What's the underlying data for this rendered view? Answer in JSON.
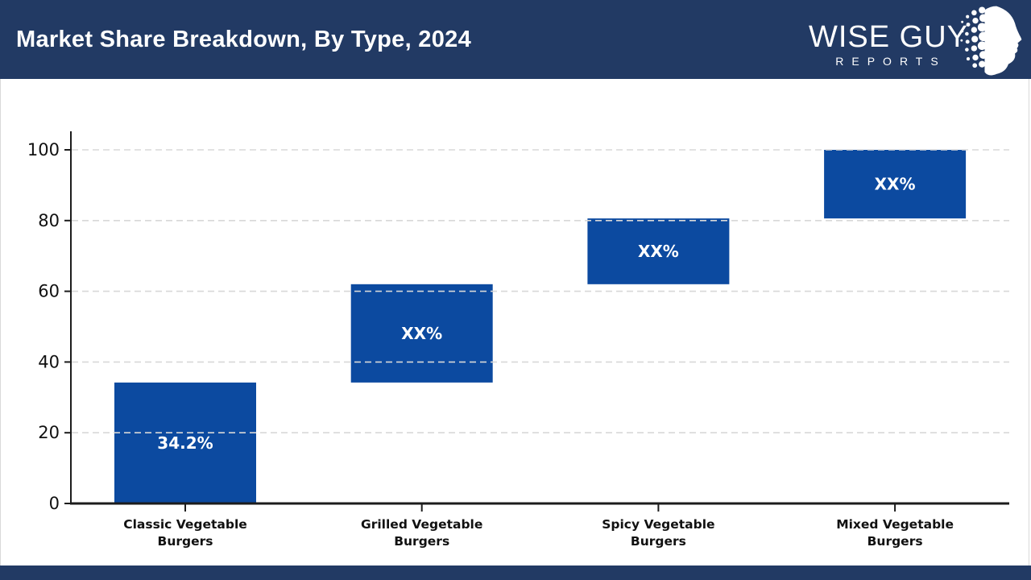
{
  "header": {
    "title": "Market Share Breakdown, By Type, 2024",
    "logo": {
      "name": "WISE GUY",
      "sub": "REPORTS"
    }
  },
  "watermark": {
    "name": "WISE GUY",
    "sub": "R E P O R T S"
  },
  "colors": {
    "header_bg": "#223a64",
    "footer_bg": "#223a64",
    "bar": "#0c4aa0",
    "bar_label": "#ffffff",
    "axis": "#1c1c1c",
    "tick_label": "#111111",
    "gridline": "#d8d8d8",
    "watermark": "#f2f2f2"
  },
  "chart_data": {
    "type": "bar",
    "subtype": "waterfall",
    "title": "Market Share Breakdown, By Type, 2024",
    "xlabel": "",
    "ylabel": "",
    "categories": [
      "Classic Vegetable Burgers",
      "Grilled Vegetable Burgers",
      "Spicy Vegetable Burgers",
      "Mixed Vegetable Burgers"
    ],
    "segments": [
      {
        "category": "Classic Vegetable Burgers",
        "start": 0,
        "end": 34.2,
        "value": 34.2,
        "label": "34.2%"
      },
      {
        "category": "Grilled Vegetable Burgers",
        "start": 34.2,
        "end": 62.0,
        "value": 27.8,
        "label": "XX%"
      },
      {
        "category": "Spicy Vegetable Burgers",
        "start": 62.0,
        "end": 80.6,
        "value": 18.6,
        "label": "XX%"
      },
      {
        "category": "Mixed Vegetable Burgers",
        "start": 80.6,
        "end": 100,
        "value": 19.4,
        "label": "XX%"
      }
    ],
    "yticks": [
      0,
      20,
      40,
      60,
      80,
      100
    ],
    "ylim": [
      0,
      105
    ],
    "grid": "horizontal-dashed-above-bars",
    "legend": "none",
    "bar_label_style": "white-bold-centered"
  }
}
